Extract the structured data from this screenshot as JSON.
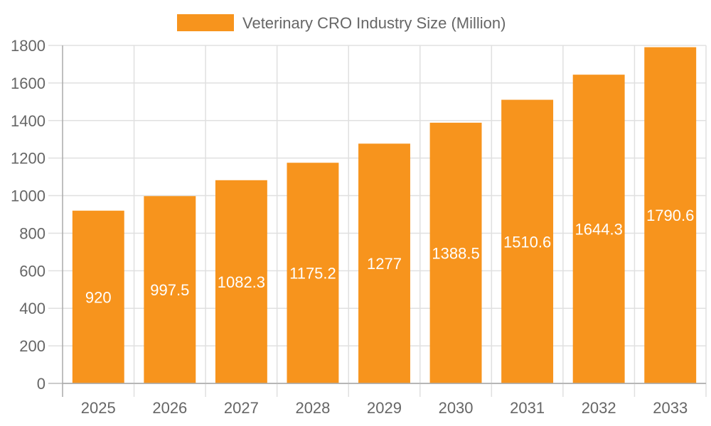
{
  "chart_data": {
    "type": "bar",
    "categories": [
      "2025",
      "2026",
      "2027",
      "2028",
      "2029",
      "2030",
      "2031",
      "2032",
      "2033"
    ],
    "series": [
      {
        "name": "Veterinary CRO Industry Size (Million)",
        "values": [
          920,
          997.5,
          1082.3,
          1175.2,
          1277,
          1388.5,
          1510.6,
          1644.3,
          1790.6
        ],
        "color": "#f7941d"
      }
    ],
    "data_labels": [
      "920",
      "997.5",
      "1082.3",
      "1175.2",
      "1277",
      "1388.5",
      "1510.6",
      "1644.3",
      "1790.6"
    ],
    "ylim": [
      0,
      1800
    ],
    "yticks": [
      "0",
      "200",
      "400",
      "600",
      "800",
      "1000",
      "1200",
      "1400",
      "1600",
      "1800"
    ],
    "grid": true,
    "legend_position": "top"
  }
}
